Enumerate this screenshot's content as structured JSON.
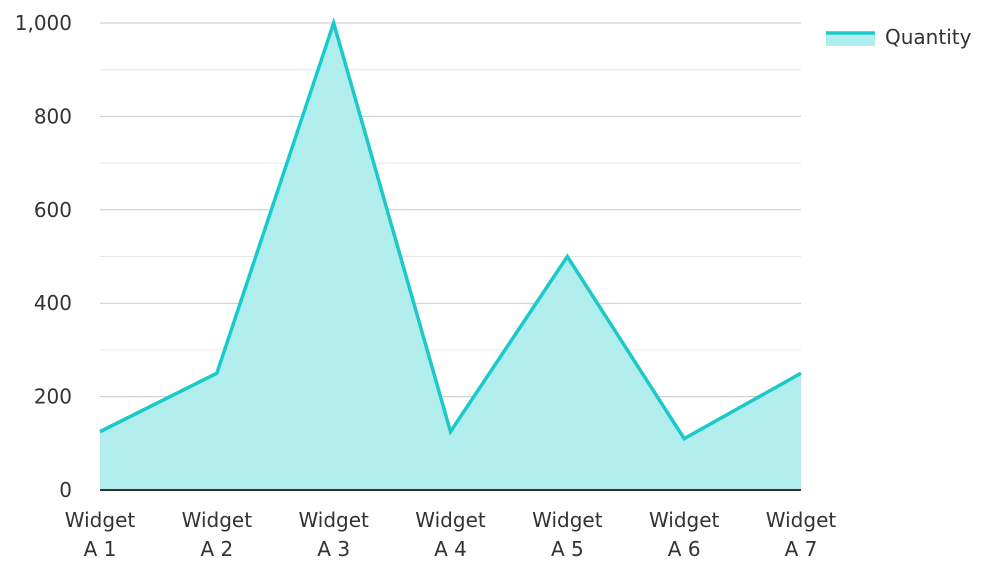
{
  "chart_data": {
    "type": "area",
    "categories": [
      "Widget A 1",
      "Widget A 2",
      "Widget A 3",
      "Widget A 4",
      "Widget A 5",
      "Widget A 6",
      "Widget A 7"
    ],
    "category_lines": [
      [
        "Widget",
        "A 1"
      ],
      [
        "Widget",
        "A 2"
      ],
      [
        "Widget",
        "A 3"
      ],
      [
        "Widget",
        "A 4"
      ],
      [
        "Widget",
        "A 5"
      ],
      [
        "Widget",
        "A 6"
      ],
      [
        "Widget",
        "A 7"
      ]
    ],
    "series": [
      {
        "name": "Quantity",
        "values": [
          125,
          250,
          1000,
          125,
          500,
          110,
          250
        ],
        "color": "#1cc9c9",
        "fill": "#b1eded"
      }
    ],
    "ylim": [
      0,
      1000
    ],
    "yticks": [
      0,
      200,
      400,
      600,
      800,
      1000
    ],
    "ytick_labels": [
      "0",
      "200",
      "400",
      "600",
      "800",
      "1,000"
    ],
    "minor_gridlines": true,
    "grid": true,
    "legend": "top-right",
    "title": "",
    "xlabel": "",
    "ylabel": ""
  }
}
